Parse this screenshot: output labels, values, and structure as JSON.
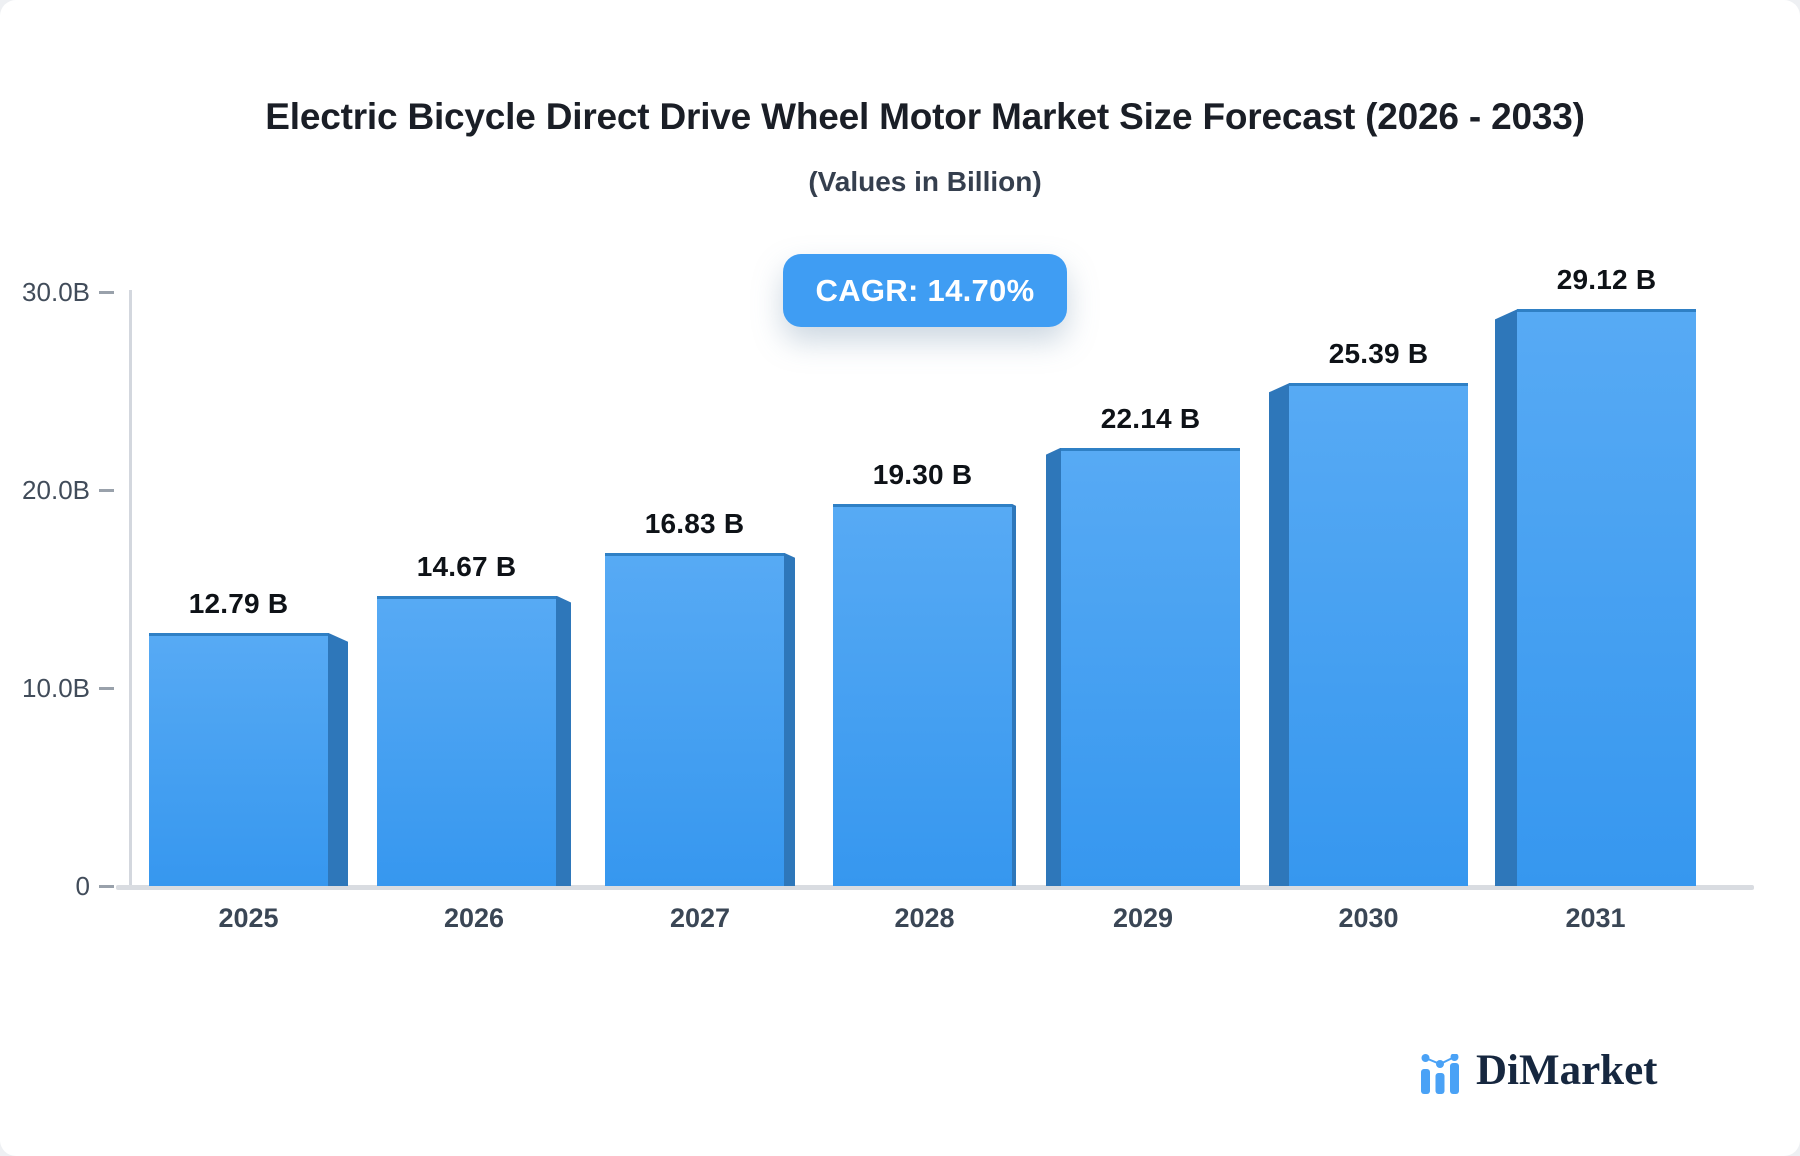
{
  "header": {
    "title": "Electric Bicycle Direct Drive Wheel Motor Market Size Forecast (2026 - 2033)",
    "subtitle": "(Values in Billion)"
  },
  "badge": {
    "label": "CAGR: 14.70%",
    "background": "#3f9df3",
    "text_color": "#ffffff"
  },
  "brand": {
    "name": "DiMarket",
    "icon": "mini-bar-chart-icon",
    "icon_color": "#4aa2f6",
    "text_color": "#16273f"
  },
  "chart_data": {
    "type": "bar",
    "title": "Electric Bicycle Direct Drive Wheel Motor Market Size Forecast (2026 - 2033)",
    "subtitle": "(Values in Billion)",
    "categories": [
      "2025",
      "2026",
      "2027",
      "2028",
      "2029",
      "2030",
      "2031"
    ],
    "values": [
      12.79,
      14.67,
      16.83,
      19.3,
      22.14,
      25.39,
      29.12
    ],
    "value_labels": [
      "12.79 B",
      "14.67 B",
      "16.83 B",
      "19.30 B",
      "22.14 B",
      "25.39 B",
      "29.12 B"
    ],
    "unit": "Billion",
    "ylim": [
      0,
      30
    ],
    "yticks": [
      {
        "label": "30.0B",
        "value": 30
      },
      {
        "label": "20.0B",
        "value": 20
      },
      {
        "label": "10.0B",
        "value": 10
      },
      {
        "label": "0",
        "value": 0
      }
    ],
    "grid": false,
    "legend_position": "none",
    "bar_color_top": "#57aaf4",
    "bar_color_bottom": "#3697ef",
    "bar_top_lip_color": "#2f80c5",
    "bar_side_color": "#2e77ba",
    "axis_color": "#d6dade",
    "style": "3d-perspective-bars"
  }
}
